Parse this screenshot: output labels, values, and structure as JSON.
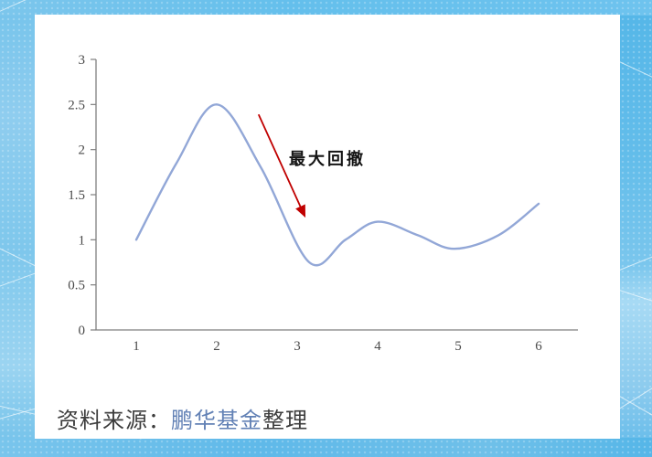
{
  "colors": {
    "curve": "#92a7d7",
    "arrow": "#c00000",
    "axis": "#7f7f7f",
    "tick_text": "#4a4a4a",
    "annotation_text": "#141414",
    "source_text": "#3d3d3d",
    "source_link": "#6281b5",
    "background_blue": "#8ccbee",
    "card_white": "#ffffff"
  },
  "chart_data": {
    "type": "line",
    "title": "",
    "xlabel": "",
    "ylabel": "",
    "xlim": [
      1,
      6
    ],
    "ylim": [
      0,
      3
    ],
    "grid": false,
    "legend": false,
    "x_tick_labels": [
      "1",
      "2",
      "3",
      "4",
      "5",
      "6"
    ],
    "y_tick_labels": [
      "0",
      "0.5",
      "1",
      "1.5",
      "2",
      "2.5",
      "3"
    ],
    "x": [
      1,
      1.5,
      2,
      2.55,
      3.15,
      3.6,
      4,
      4.5,
      4.95,
      5.5,
      6
    ],
    "y": [
      1.0,
      1.85,
      2.5,
      1.8,
      0.75,
      1.0,
      1.2,
      1.05,
      0.9,
      1.05,
      1.4
    ],
    "key_points": {
      "start": [
        1,
        1.0
      ],
      "peak": [
        2,
        2.5
      ],
      "trough": [
        3.15,
        0.75
      ],
      "local_max": [
        4,
        1.2
      ],
      "local_min": [
        5,
        0.9
      ],
      "end": [
        6,
        1.4
      ]
    },
    "annotation": "最大回撤",
    "arrow": {
      "from_x": 2.52,
      "from_y": 2.39,
      "to_x": 3.09,
      "to_y": 1.27
    }
  },
  "source": {
    "prefix": "资料来源：",
    "link": "鹏华基金",
    "suffix": "整理"
  }
}
